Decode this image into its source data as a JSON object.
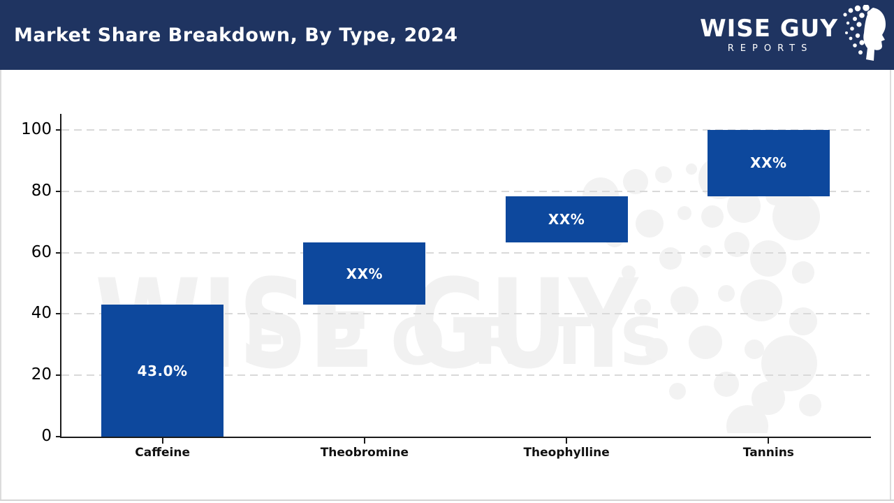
{
  "header": {
    "title": "Market Share Breakdown, By Type, 2024",
    "logo": {
      "line1": "WISE GUY",
      "line2": "REPORTS"
    }
  },
  "watermark": {
    "line1": "WISE GUY",
    "line2": "REPORTS"
  },
  "colors": {
    "header_bg": "#1F3461",
    "bar": "#0D489D",
    "grid": "#D9D9D9",
    "axis": "#1A1A1A",
    "watermark": "#F1F1F1",
    "bar_label": "#FFFFFF"
  },
  "chart_data": {
    "type": "bar",
    "subtype": "waterfall",
    "title": "Market Share Breakdown, By Type, 2024",
    "categories": [
      "Caffeine",
      "Theobromine",
      "Theophylline",
      "Tannins"
    ],
    "series": [
      {
        "name": "Caffeine",
        "start": 0,
        "end": 43,
        "label": "43.0%"
      },
      {
        "name": "Theobromine",
        "start": 43,
        "end": 63.3,
        "label": "XX%"
      },
      {
        "name": "Theophylline",
        "start": 63.3,
        "end": 78.4,
        "label": "XX%"
      },
      {
        "name": "Tannins",
        "start": 78.4,
        "end": 100,
        "label": "XX%"
      }
    ],
    "xlabel": "",
    "ylabel": "",
    "ylim": [
      0,
      100
    ],
    "yticks": [
      0,
      20,
      40,
      60,
      80,
      100
    ],
    "grid": "horizontal-dashed",
    "legend": "none"
  }
}
